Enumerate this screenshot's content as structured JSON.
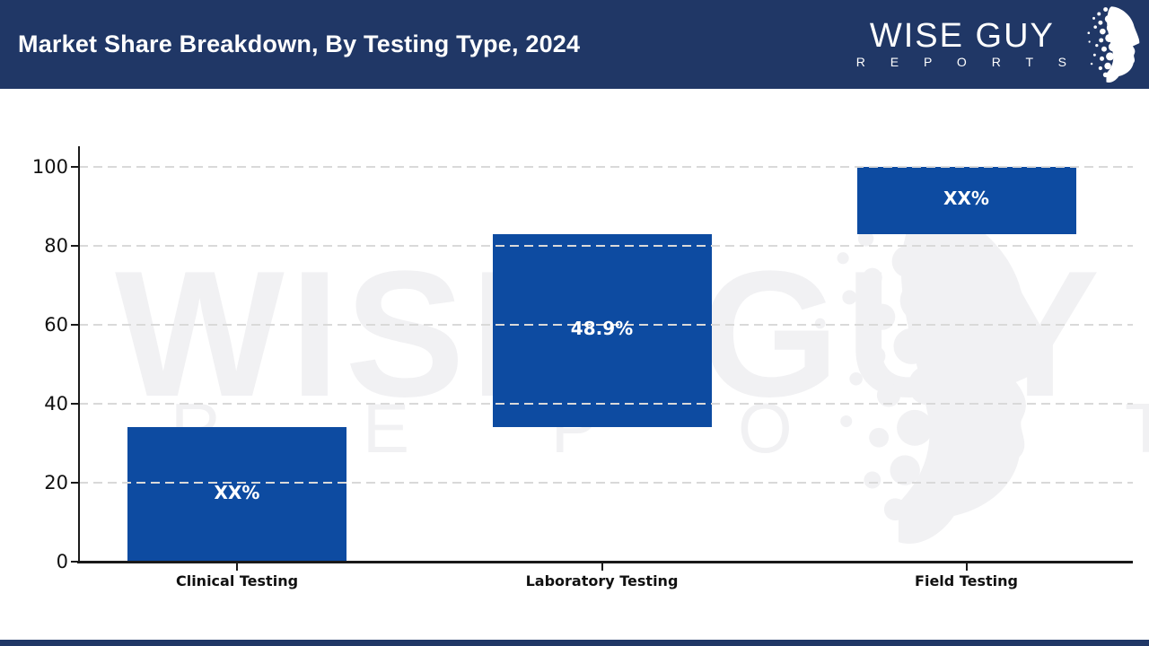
{
  "header": {
    "title": "Market Share Breakdown, By Testing Type, 2024",
    "bg_color": "#203766",
    "logo": {
      "line1": "WISE GUY",
      "line2": "R E P O R T S"
    }
  },
  "watermark": {
    "line1": "WISE GUY",
    "line2": "R E P O R T S"
  },
  "footer": {
    "bg_color": "#203766"
  },
  "chart_data": {
    "type": "bar",
    "subtype": "waterfall-floating-bars",
    "title": "Market Share Breakdown, By Testing Type, 2024",
    "categories": [
      "Clinical Testing",
      "Laboratory Testing",
      "Field Testing"
    ],
    "bars": [
      {
        "category": "Clinical Testing",
        "start": 0,
        "end": 34.1,
        "label": "XX%"
      },
      {
        "category": "Laboratory Testing",
        "start": 34.1,
        "end": 83,
        "label": "48.9%"
      },
      {
        "category": "Field Testing",
        "start": 83,
        "end": 100,
        "label": "XX%"
      }
    ],
    "yticks": [
      0,
      20,
      40,
      60,
      80,
      100
    ],
    "ylim": [
      0,
      105
    ],
    "xlabel": "",
    "ylabel": "",
    "grid": "horizontal-dashed-drawn-over-bars",
    "bar_color": "#0d4ba1",
    "grid_color": "#d9d9d9",
    "value_label_color": "#ffffff",
    "legend": "none"
  }
}
